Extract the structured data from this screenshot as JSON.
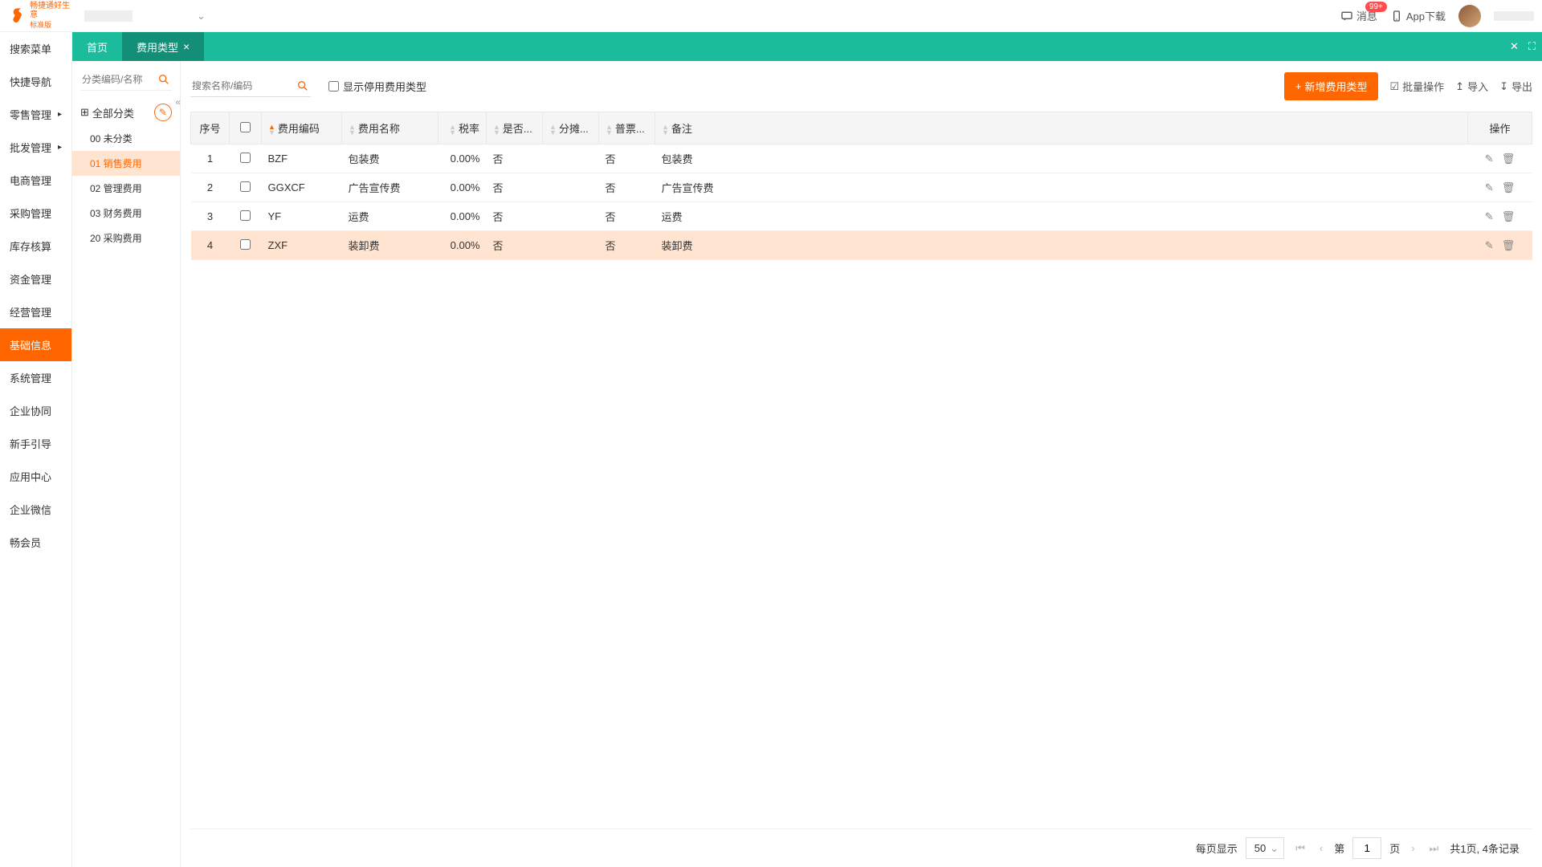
{
  "header": {
    "logo_text": "畅捷通好生意",
    "logo_sub": "标准版",
    "messages_label": "消息",
    "messages_badge": "99+",
    "app_download": "App下载"
  },
  "sidebar": {
    "items": [
      {
        "label": "搜索菜单",
        "expandable": false
      },
      {
        "label": "快捷导航",
        "expandable": false
      },
      {
        "label": "零售管理",
        "expandable": true
      },
      {
        "label": "批发管理",
        "expandable": true
      },
      {
        "label": "电商管理",
        "expandable": false
      },
      {
        "label": "采购管理",
        "expandable": false
      },
      {
        "label": "库存核算",
        "expandable": false
      },
      {
        "label": "资金管理",
        "expandable": false
      },
      {
        "label": "经营管理",
        "expandable": false
      },
      {
        "label": "基础信息",
        "expandable": false,
        "active": true
      },
      {
        "label": "系统管理",
        "expandable": false
      },
      {
        "label": "企业协同",
        "expandable": false
      },
      {
        "label": "新手引导",
        "expandable": false
      },
      {
        "label": "应用中心",
        "expandable": false
      },
      {
        "label": "企业微信",
        "expandable": false
      },
      {
        "label": "畅会员",
        "expandable": false
      }
    ]
  },
  "tabs": {
    "items": [
      {
        "label": "首页",
        "closable": false
      },
      {
        "label": "费用类型",
        "closable": true,
        "active": true
      }
    ]
  },
  "categories": {
    "search_placeholder": "分类编码/名称",
    "header_label": "全部分类",
    "items": [
      {
        "label": "00 未分类"
      },
      {
        "label": "01 销售费用",
        "active": true
      },
      {
        "label": "02 管理费用"
      },
      {
        "label": "03 财务费用"
      },
      {
        "label": "20 采购费用"
      }
    ]
  },
  "toolbar": {
    "search_placeholder": "搜索名称/编码",
    "show_disabled_label": "显示停用费用类型",
    "new_label": "新增费用类型",
    "batch_label": "批量操作",
    "import_label": "导入",
    "export_label": "导出"
  },
  "table": {
    "columns": {
      "idx": "序号",
      "code": "费用编码",
      "name": "费用名称",
      "rate": "税率",
      "is_what": "是否...",
      "share": "分摊...",
      "invoice": "普票...",
      "remark": "备注",
      "op": "操作"
    },
    "rows": [
      {
        "idx": "1",
        "code": "BZF",
        "name": "包装费",
        "rate": "0.00%",
        "is_what": "否",
        "share": "",
        "invoice": "否",
        "remark": "包装费"
      },
      {
        "idx": "2",
        "code": "GGXCF",
        "name": "广告宣传费",
        "rate": "0.00%",
        "is_what": "否",
        "share": "",
        "invoice": "否",
        "remark": "广告宣传费"
      },
      {
        "idx": "3",
        "code": "YF",
        "name": "运费",
        "rate": "0.00%",
        "is_what": "否",
        "share": "",
        "invoice": "否",
        "remark": "运费"
      },
      {
        "idx": "4",
        "code": "ZXF",
        "name": "装卸费",
        "rate": "0.00%",
        "is_what": "否",
        "share": "",
        "invoice": "否",
        "remark": "装卸费",
        "highlight": true
      }
    ]
  },
  "pagination": {
    "per_page_label": "每页显示",
    "per_page_value": "50",
    "page_prefix": "第",
    "page_value": "1",
    "page_suffix": "页",
    "total_text": "共1页, 4条记录"
  },
  "colors": {
    "primary": "#ff6600",
    "tab_bg": "#1abc9c",
    "tab_active": "#148f77",
    "highlight_row": "#ffe4d1"
  }
}
